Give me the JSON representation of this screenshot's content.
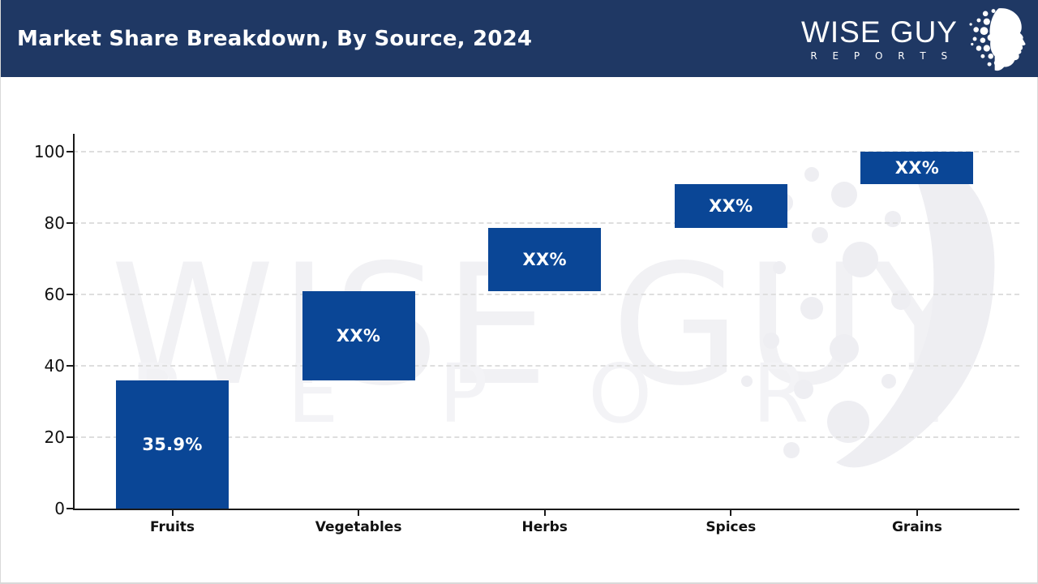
{
  "header": {
    "title": "Market Share Breakdown, By Source, 2024",
    "bg_color": "#1f3864",
    "logo": {
      "line1": "WISE GUY",
      "line2": "R E P O R T S"
    }
  },
  "watermark": {
    "line1": "WISE GUY",
    "line2": "R E P O R T S"
  },
  "chart_data": {
    "type": "bar",
    "subtype": "waterfall",
    "title": "Market Share Breakdown, By Source, 2024",
    "categories": [
      "Fruits",
      "Vegetables",
      "Herbs",
      "Spices",
      "Grains"
    ],
    "segments": [
      {
        "category": "Fruits",
        "start": 0,
        "end": 35.9,
        "value": 35.9,
        "value_label": "35.9%"
      },
      {
        "category": "Vegetables",
        "start": 35.9,
        "end": 60.9,
        "value": 25.0,
        "value_label": "XX%"
      },
      {
        "category": "Herbs",
        "start": 60.9,
        "end": 78.6,
        "value": 17.7,
        "value_label": "XX%"
      },
      {
        "category": "Spices",
        "start": 78.6,
        "end": 90.9,
        "value": 12.3,
        "value_label": "XX%"
      },
      {
        "category": "Grains",
        "start": 90.9,
        "end": 100,
        "value": 9.1,
        "value_label": "XX%"
      }
    ],
    "xlabel": "",
    "ylabel": "",
    "ylim": [
      0,
      100
    ],
    "yticks": [
      0,
      20,
      40,
      60,
      80,
      100
    ],
    "grid": "horizontal-dashed",
    "legend": "none",
    "bar_color": "#0a4696",
    "grid_color": "#dedede",
    "axis_color": "#1a1a1a",
    "value_label_color": "#ffffff"
  }
}
